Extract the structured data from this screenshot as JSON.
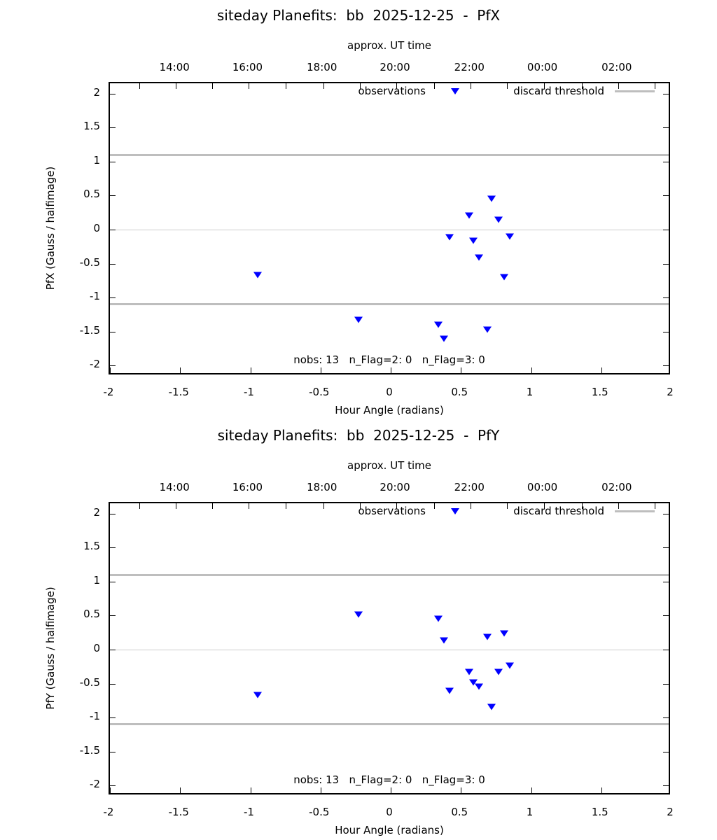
{
  "colors": {
    "marker_blue": "#0000ff",
    "threshold_gray": "#bebebe",
    "zero_line_gray": "#cccccc",
    "axis_black": "#000000",
    "background": "#ffffff"
  },
  "chart_data": [
    {
      "type": "scatter",
      "title": "siteday Planefits:  bb  2025-12-25  -  PfX",
      "x2label": "approx. UT time",
      "xlabel": "Hour Angle (radians)",
      "ylabel": "PfX (Gauss / halfimage)",
      "annotation": "nobs: 13   n_Flag=2: 0   n_Flag=3: 0",
      "nobs": 13,
      "n_flag2": 0,
      "n_flag3": 0,
      "legend": {
        "observations": "observations",
        "threshold": "discard threshold"
      },
      "xlim": [
        -2,
        2
      ],
      "ylim": [
        -2.15,
        2.15
      ],
      "x_ticks": [
        -2,
        -1.5,
        -1,
        -0.5,
        0,
        0.5,
        1,
        1.5,
        2
      ],
      "x_tick_labels": [
        "-2",
        "-1.5",
        "-1",
        "-0.5",
        "0",
        "0.5",
        "1",
        "1.5",
        "2"
      ],
      "y_ticks": [
        -2,
        -1.5,
        -1,
        -0.5,
        0,
        0.5,
        1,
        1.5,
        2
      ],
      "y_tick_labels": [
        "-2",
        "-1.5",
        "-1",
        "-0.5",
        "0",
        "0.5",
        "1",
        "1.5",
        "2"
      ],
      "ut_axis": {
        "labels": [
          "14:00",
          "16:00",
          "18:00",
          "20:00",
          "22:00",
          "00:00",
          "02:00"
        ],
        "positions": [
          -1.53,
          -1.01,
          -0.48,
          0.04,
          0.57,
          1.09,
          1.62
        ],
        "minor_positions": [
          -1.79,
          -1.53,
          -1.27,
          -1.01,
          -0.75,
          -0.48,
          -0.22,
          0.04,
          0.31,
          0.57,
          0.83,
          1.09,
          1.36,
          1.62,
          1.88
        ]
      },
      "thresholds": [
        1.1,
        -1.1
      ],
      "zero_line": 0,
      "points": [
        [
          -0.95,
          -0.67
        ],
        [
          -0.23,
          -1.33
        ],
        [
          0.34,
          -1.4
        ],
        [
          0.38,
          -1.6
        ],
        [
          0.42,
          -0.11
        ],
        [
          0.56,
          0.21
        ],
        [
          0.59,
          -0.16
        ],
        [
          0.63,
          -0.41
        ],
        [
          0.69,
          -1.47
        ],
        [
          0.72,
          0.45
        ],
        [
          0.77,
          0.14
        ],
        [
          0.81,
          -0.7
        ],
        [
          0.85,
          -0.1
        ]
      ]
    },
    {
      "type": "scatter",
      "title": "siteday Planefits:  bb  2025-12-25  -  PfY",
      "x2label": "approx. UT time",
      "xlabel": "Hour Angle (radians)",
      "ylabel": "PfY (Gauss / halfimage)",
      "annotation": "nobs: 13   n_Flag=2: 0   n_Flag=3: 0",
      "nobs": 13,
      "n_flag2": 0,
      "n_flag3": 0,
      "legend": {
        "observations": "observations",
        "threshold": "discard threshold"
      },
      "xlim": [
        -2,
        2
      ],
      "ylim": [
        -2.15,
        2.15
      ],
      "x_ticks": [
        -2,
        -1.5,
        -1,
        -0.5,
        0,
        0.5,
        1,
        1.5,
        2
      ],
      "x_tick_labels": [
        "-2",
        "-1.5",
        "-1",
        "-0.5",
        "0",
        "0.5",
        "1",
        "1.5",
        "2"
      ],
      "y_ticks": [
        -2,
        -1.5,
        -1,
        -0.5,
        0,
        0.5,
        1,
        1.5,
        2
      ],
      "y_tick_labels": [
        "-2",
        "-1.5",
        "-1",
        "-0.5",
        "0",
        "0.5",
        "1",
        "1.5",
        "2"
      ],
      "ut_axis": {
        "labels": [
          "14:00",
          "16:00",
          "18:00",
          "20:00",
          "22:00",
          "00:00",
          "02:00"
        ],
        "positions": [
          -1.53,
          -1.01,
          -0.48,
          0.04,
          0.57,
          1.09,
          1.62
        ],
        "minor_positions": [
          -1.79,
          -1.53,
          -1.27,
          -1.01,
          -0.75,
          -0.48,
          -0.22,
          0.04,
          0.31,
          0.57,
          0.83,
          1.09,
          1.36,
          1.62,
          1.88
        ]
      },
      "thresholds": [
        1.1,
        -1.1
      ],
      "zero_line": 0,
      "points": [
        [
          -0.95,
          -0.67
        ],
        [
          -0.23,
          0.51
        ],
        [
          0.34,
          0.45
        ],
        [
          0.38,
          0.13
        ],
        [
          0.42,
          -0.61
        ],
        [
          0.56,
          -0.33
        ],
        [
          0.59,
          -0.48
        ],
        [
          0.63,
          -0.55
        ],
        [
          0.69,
          0.19
        ],
        [
          0.72,
          -0.84
        ],
        [
          0.77,
          -0.33
        ],
        [
          0.81,
          0.24
        ],
        [
          0.85,
          -0.24
        ]
      ]
    }
  ]
}
